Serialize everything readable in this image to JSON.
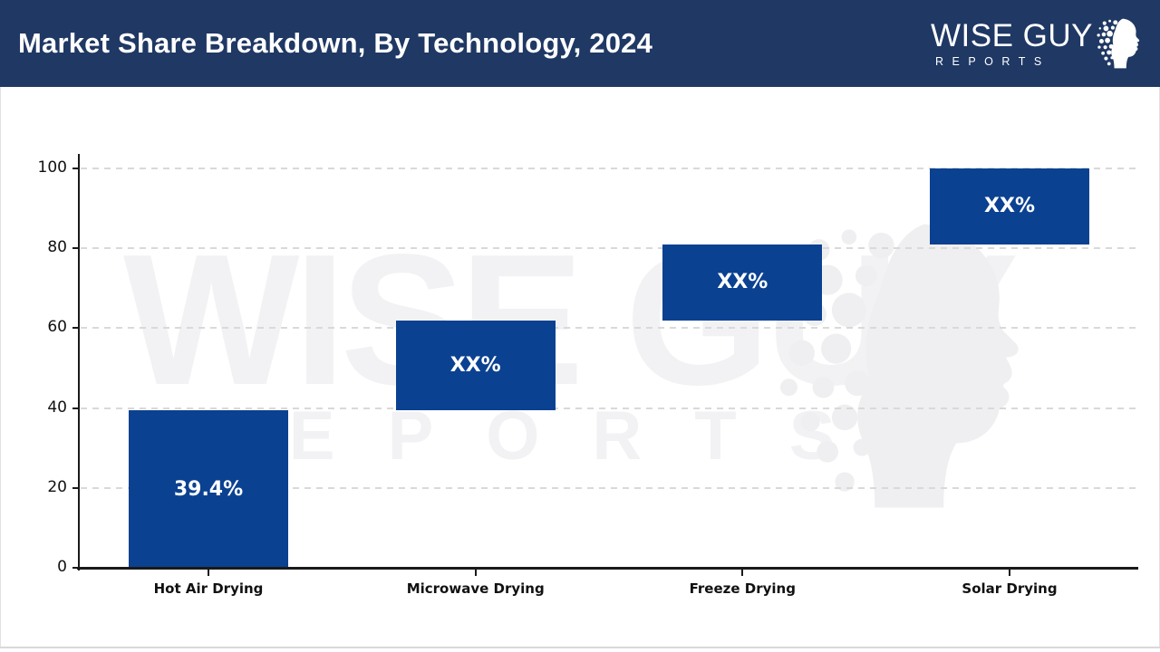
{
  "header": {
    "title": "Market Share Breakdown, By Technology, 2024",
    "logo": {
      "line1": "WISE GUY",
      "line2": "REPORTS"
    }
  },
  "watermark": {
    "line1": "WISE GUY",
    "line2": "REPORTS"
  },
  "chart_data": {
    "type": "bar",
    "subtype": "waterfall",
    "title": "Market Share Breakdown, By Technology, 2024",
    "categories": [
      "Hot Air Drying",
      "Microwave Drying",
      "Freeze Drying",
      "Solar Drying"
    ],
    "segments": [
      {
        "category": "Hot Air Drying",
        "start": 0,
        "end": 39.4,
        "label": "39.4%"
      },
      {
        "category": "Microwave Drying",
        "start": 39.4,
        "end": 62,
        "label": "XX%"
      },
      {
        "category": "Freeze Drying",
        "start": 62,
        "end": 81,
        "label": "XX%"
      },
      {
        "category": "Solar Drying",
        "start": 81,
        "end": 100,
        "label": "XX%"
      }
    ],
    "y_ticks": [
      0,
      20,
      40,
      60,
      80,
      100
    ],
    "ylim": [
      0,
      100
    ],
    "xlabel": "",
    "ylabel": "",
    "legend": "none",
    "grid": "horizontal-dashed",
    "colors": {
      "bar": "#0b4191",
      "header_bg": "#1f3864",
      "grid": "#d9d9d9",
      "axis": "#1a1a1a",
      "bar_label": "#ffffff",
      "watermark": "#f2f2f4"
    }
  }
}
